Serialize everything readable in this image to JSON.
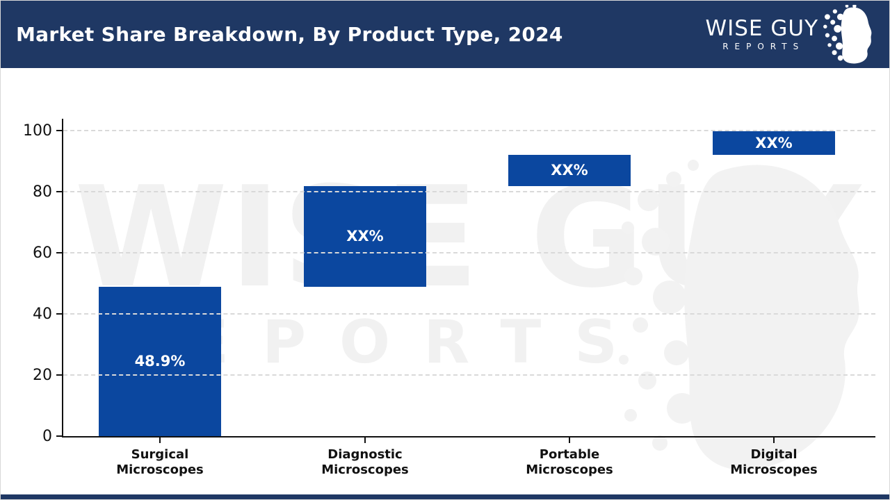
{
  "header": {
    "title": "Market Share Breakdown, By Product Type, 2024",
    "logo": {
      "brand_top": "WISE GUY",
      "brand_bottom": "REPORTS",
      "head_icon": "dotted-head-profile"
    }
  },
  "watermark": {
    "big_text": "WISE GUY",
    "small_text": "REPORTS",
    "head_icon": "dotted-head-profile",
    "color": "#f1f1f1"
  },
  "chart_data": {
    "type": "bar",
    "subtype": "waterfall",
    "title": "Market Share Breakdown, By Product Type, 2024",
    "xlabel": "",
    "ylabel": "",
    "ylim": [
      0,
      100
    ],
    "yticks": [
      0,
      20,
      40,
      60,
      80,
      100
    ],
    "grid": {
      "horizontal": true,
      "style": "dashed",
      "color": "#d9d9d9",
      "above_bars": true
    },
    "legend": "none",
    "bar_color": "#0b479f",
    "categories": [
      {
        "line1": "Surgical",
        "line2": "Microscopes"
      },
      {
        "line1": "Diagnostic",
        "line2": "Microscopes"
      },
      {
        "line1": "Portable",
        "line2": "Microscopes"
      },
      {
        "line1": "Digital",
        "line2": "Microscopes"
      }
    ],
    "segments": [
      {
        "category": "Surgical Microscopes",
        "label": "48.9%",
        "start": 0,
        "end": 48.9
      },
      {
        "category": "Diagnostic Microscopes",
        "label": "XX%",
        "start": 48.9,
        "end": 81.9
      },
      {
        "category": "Portable Microscopes",
        "label": "XX%",
        "start": 81.9,
        "end": 92.0
      },
      {
        "category": "Digital Microscopes",
        "label": "XX%",
        "start": 92.0,
        "end": 99.8
      }
    ]
  },
  "colors": {
    "header_bg": "#1f3864",
    "footer_bg": "#1f3864",
    "bar": "#0b479f",
    "axis": "#111111",
    "grid": "#d9d9d9",
    "watermark": "#f1f1f1",
    "title_text": "#ffffff",
    "bar_label_text": "#ffffff"
  }
}
